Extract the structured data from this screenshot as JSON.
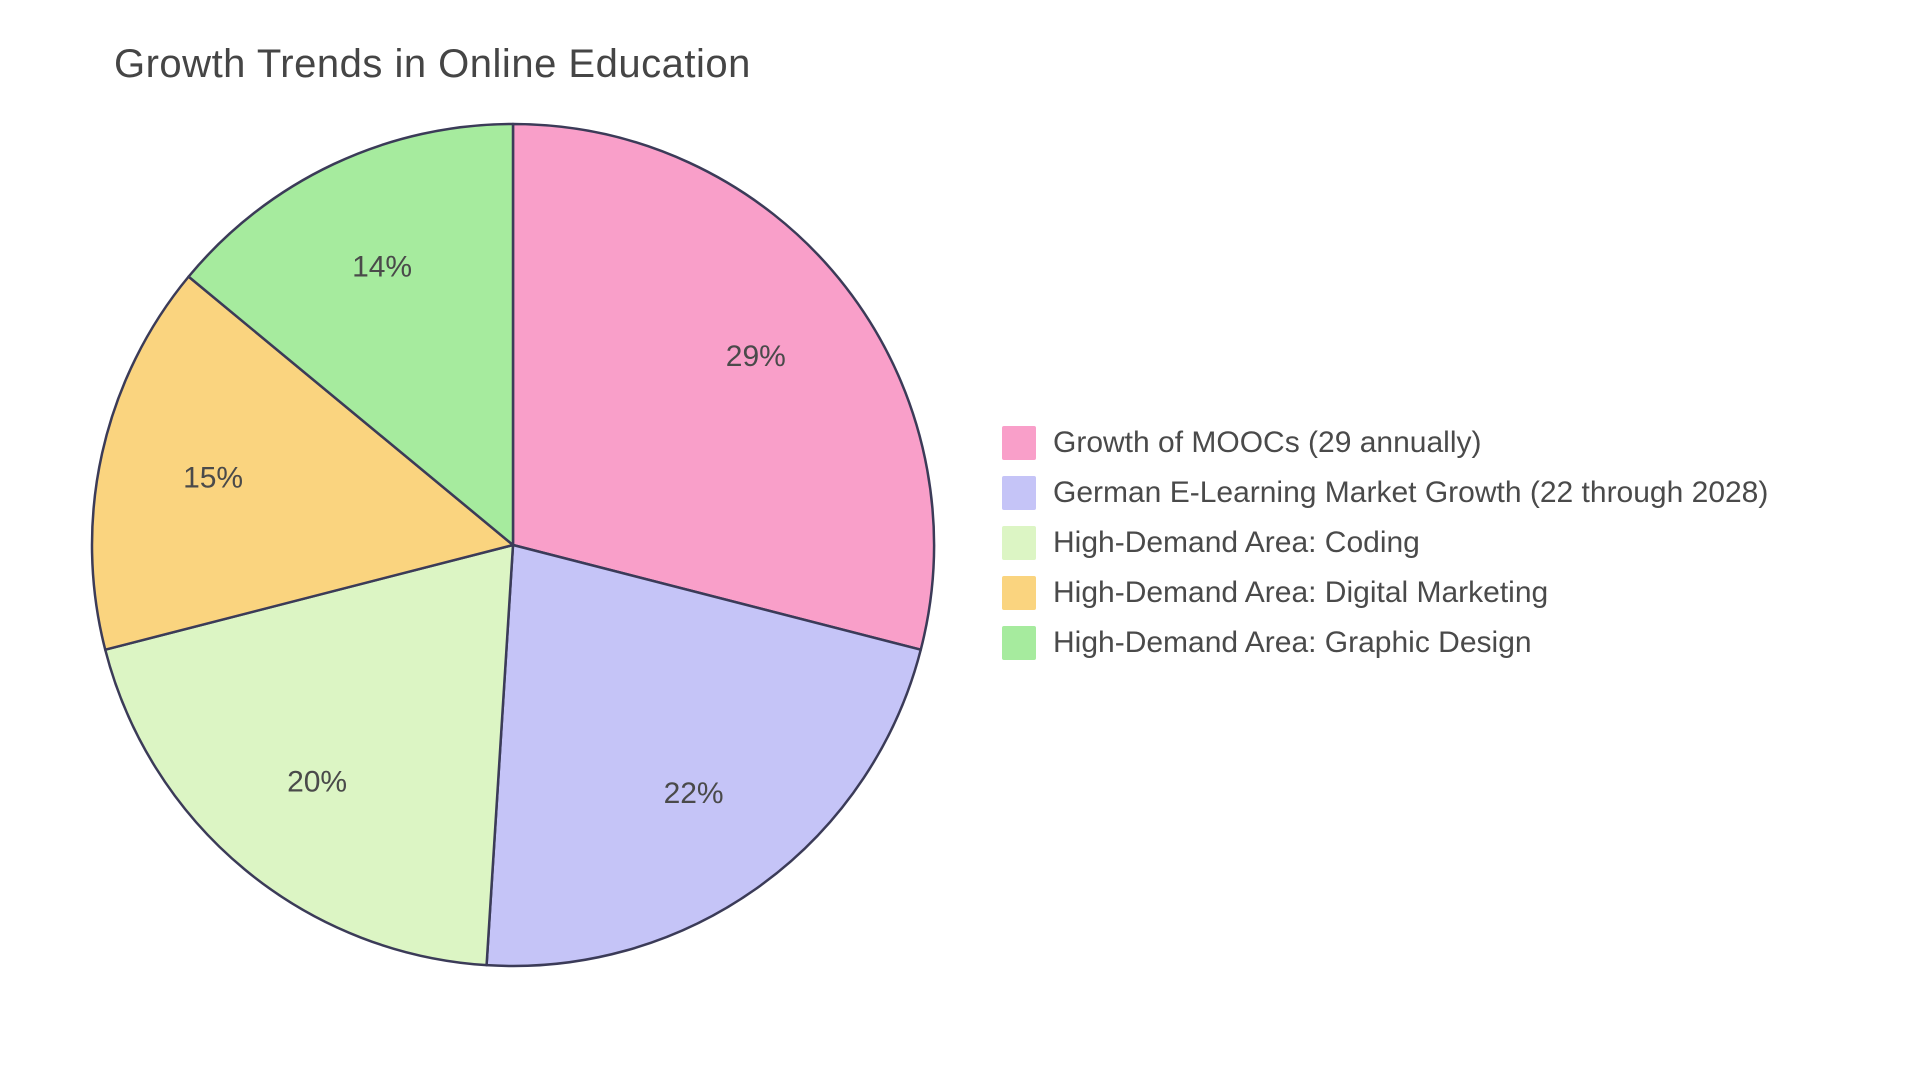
{
  "title": "Growth Trends in Online Education",
  "chart_data": {
    "type": "pie",
    "title": "Growth Trends in Online Education",
    "direction": "clockwise",
    "start_angle_deg": 0,
    "legend_position": "right",
    "stroke_color": "#3b3b58",
    "label_color": "#4a4a4a",
    "slices": [
      {
        "label": "Growth of MOOCs (29 annually)",
        "value": 29,
        "percent_label": "29%",
        "color": "#f99fc9"
      },
      {
        "label": "German E-Learning Market Growth (22 through 2028)",
        "value": 22,
        "percent_label": "22%",
        "color": "#c5c4f7"
      },
      {
        "label": "High-Demand Area: Coding",
        "value": 20,
        "percent_label": "20%",
        "color": "#dcf5c4"
      },
      {
        "label": "High-Demand Area: Digital Marketing",
        "value": 15,
        "percent_label": "15%",
        "color": "#fad47f"
      },
      {
        "label": "High-Demand Area: Graphic Design",
        "value": 14,
        "percent_label": "14%",
        "color": "#a6eb9e"
      }
    ]
  }
}
